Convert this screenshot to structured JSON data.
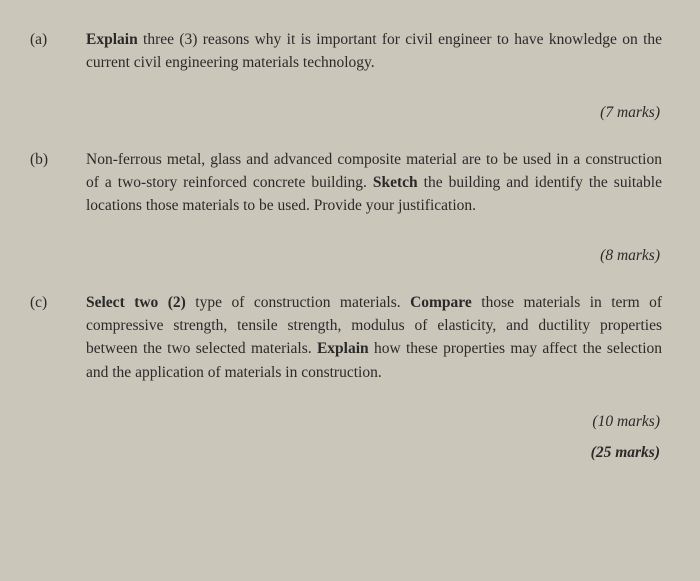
{
  "background_color": "#cbc6ba",
  "text_color": "#2a2a2a",
  "font_family": "Times New Roman",
  "base_fontsize": 15.5,
  "questions": [
    {
      "label": "(a)",
      "bold_lead": "Explain",
      "text_after": " three (3) reasons why it is important for civil engineer to have knowledge on the current civil engineering materials technology.",
      "marks": "(7 marks)"
    },
    {
      "label": "(b)",
      "text_before": "Non-ferrous metal, glass and advanced composite material are to be used in a construction of a two-story reinforced concrete building. ",
      "bold_lead": "Sketch",
      "text_after": " the building and identify the suitable locations those materials to be used. Provide your justification.",
      "marks": "(8 marks)"
    },
    {
      "label": "(c)",
      "bold_lead": "Select two (2)",
      "text_mid1": " type of construction materials. ",
      "bold_mid": "Compare",
      "text_mid2": " those materials in term of compressive strength, tensile strength, modulus of elasticity, and ductility properties between the two selected materials. ",
      "bold_end": "Explain",
      "text_after": " how these properties may affect the selection and the application of materials in construction.",
      "marks": "(10 marks)"
    }
  ],
  "total_marks": "(25 marks)"
}
